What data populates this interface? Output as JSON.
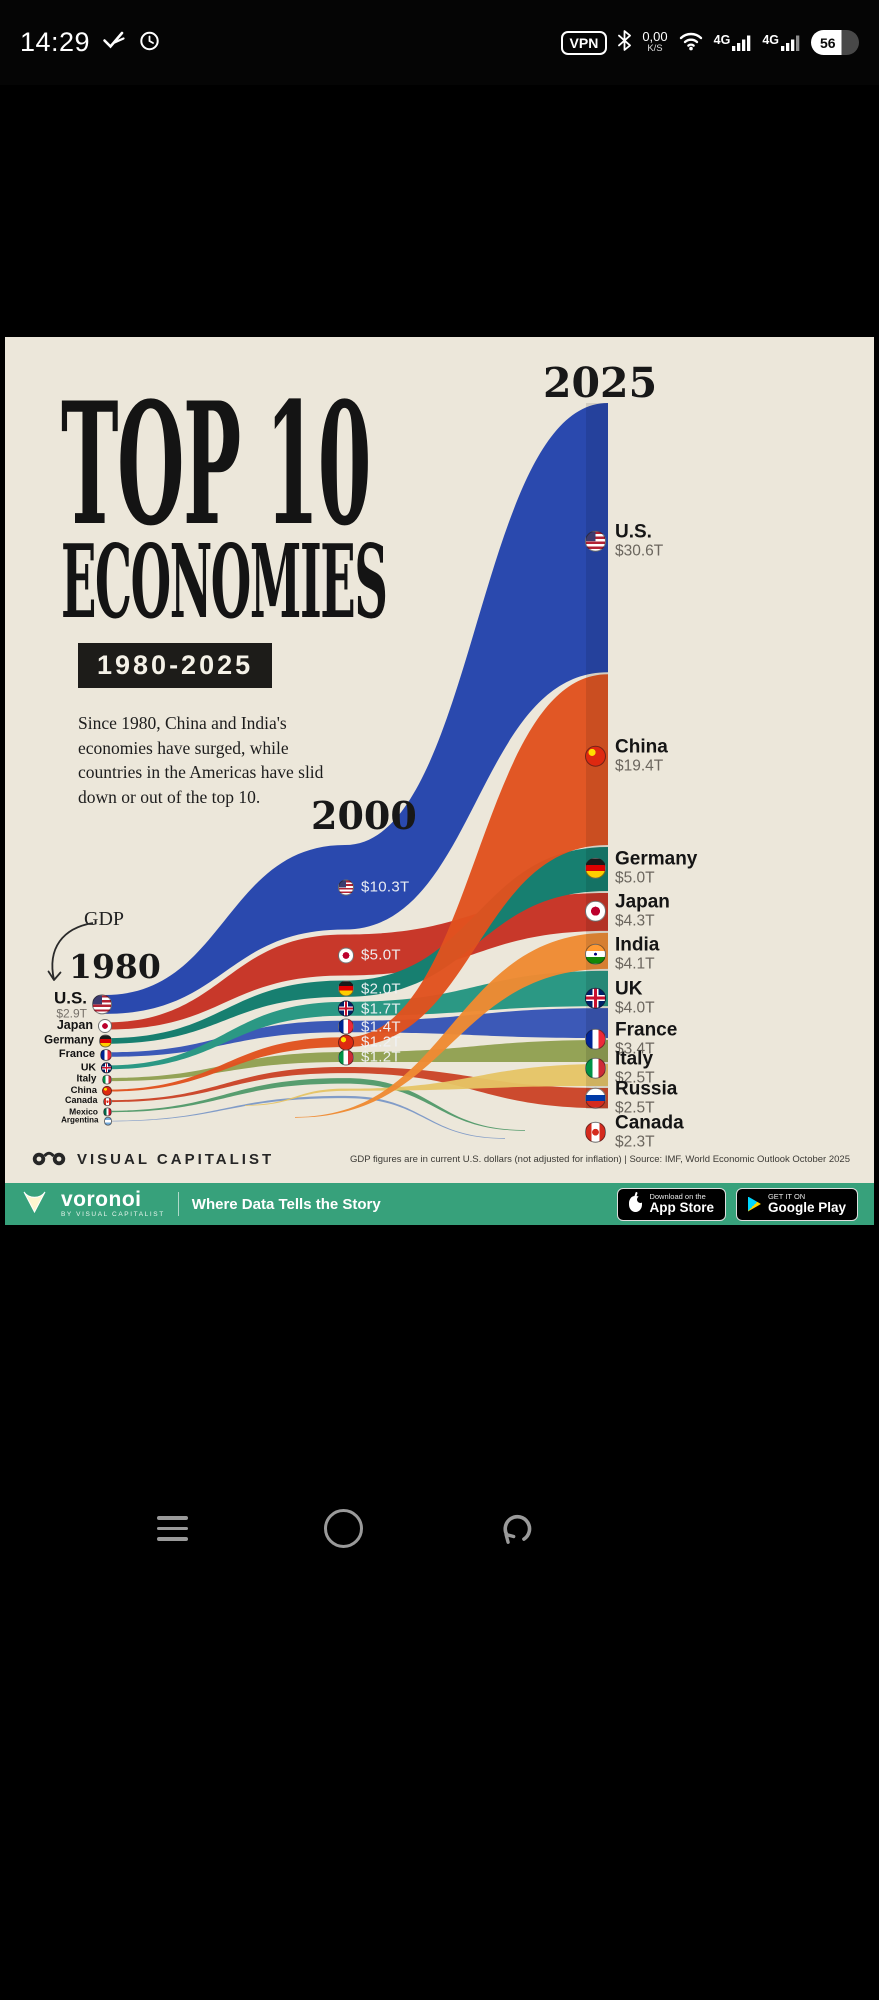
{
  "status_bar": {
    "time": "14:29",
    "vpn_label": "VPN",
    "net_speed_value": "0,00",
    "net_speed_unit": "K/S",
    "network_type_a": "4G",
    "network_type_b": "4G",
    "battery_level": "56"
  },
  "infographic": {
    "year_right": "2025",
    "year_mid": "2000",
    "year_left": "1980",
    "title_line1": "TOP 10",
    "title_line2": "ECONOMIES",
    "period_badge": "1980-2025",
    "intro": "Since 1980, China and India's economies have surged, while countries in the Americas have slid down or out of the top 10.",
    "gdp_label": "GDP",
    "left_axis_labels": [
      {
        "name": "U.S.",
        "value": "$2.9T",
        "flag": "us"
      },
      {
        "name": "Japan",
        "flag": "jp"
      },
      {
        "name": "Germany",
        "flag": "de"
      },
      {
        "name": "France",
        "flag": "fr"
      },
      {
        "name": "UK",
        "flag": "uk"
      },
      {
        "name": "Italy",
        "flag": "it"
      },
      {
        "name": "China",
        "flag": "cn"
      },
      {
        "name": "Canada",
        "flag": "ca"
      },
      {
        "name": "Mexico",
        "flag": "mx"
      },
      {
        "name": "Argentina",
        "flag": "ar"
      }
    ],
    "mid_axis_labels": [
      {
        "value": "$10.3T",
        "flag": "us"
      },
      {
        "value": "$5.0T",
        "flag": "jp"
      },
      {
        "value": "$2.0T",
        "flag": "de"
      },
      {
        "value": "$1.7T",
        "flag": "uk"
      },
      {
        "value": "$1.4T",
        "flag": "fr"
      },
      {
        "value": "$1.2T",
        "flag": "cn"
      },
      {
        "value": "$1.2T",
        "flag": "it"
      }
    ],
    "right_axis_labels": [
      {
        "name": "U.S.",
        "value": "$30.6T",
        "flag": "us"
      },
      {
        "name": "China",
        "value": "$19.4T",
        "flag": "cn"
      },
      {
        "name": "Germany",
        "value": "$5.0T",
        "flag": "de"
      },
      {
        "name": "Japan",
        "value": "$4.3T",
        "flag": "jp"
      },
      {
        "name": "India",
        "value": "$4.1T",
        "flag": "in"
      },
      {
        "name": "UK",
        "value": "$4.0T",
        "flag": "uk"
      },
      {
        "name": "France",
        "value": "$3.4T",
        "flag": "fr"
      },
      {
        "name": "Italy",
        "value": "$2.5T",
        "flag": "it"
      },
      {
        "name": "Russia",
        "value": "$2.5T",
        "flag": "ru"
      },
      {
        "name": "Canada",
        "value": "$2.3T",
        "flag": "ca"
      }
    ],
    "brand": "VISUAL CAPITALIST",
    "source_note": "GDP figures are in current U.S. dollars (not adjusted for inflation) | Source: IMF, World Economic Outlook October 2025"
  },
  "promo_bar": {
    "brand": "voronoi",
    "brand_sub": "BY VISUAL CAPITALIST",
    "tagline": "Where Data Tells the Story",
    "appstore_line1": "Download on the",
    "appstore_line2": "App Store",
    "play_line1": "GET IT ON",
    "play_line2": "Google Play"
  },
  "chart_data": {
    "type": "area",
    "title": "TOP 10 ECONOMIES",
    "subtitle": "1980-2025",
    "x": [
      1980,
      2000,
      2025
    ],
    "unit": "USD trillions, current (not adjusted for inflation)",
    "legend_position": "labels-on-chart",
    "series": [
      {
        "name": "U.S.",
        "flag": "us",
        "color": "#2a49ae",
        "values": [
          2.9,
          10.3,
          30.6
        ]
      },
      {
        "name": "China",
        "flag": "cn",
        "color": "#e0521f",
        "values": [
          0.3,
          1.2,
          19.4
        ]
      },
      {
        "name": "Germany",
        "flag": "de",
        "color": "#177f70",
        "values": [
          0.85,
          2.0,
          5.0
        ]
      },
      {
        "name": "Japan",
        "flag": "jp",
        "color": "#c8382a",
        "values": [
          1.1,
          5.0,
          4.3
        ]
      },
      {
        "name": "India",
        "flag": "in",
        "color": "#ee8a33",
        "values": [
          0.19,
          0.48,
          4.1
        ]
      },
      {
        "name": "UK",
        "flag": "uk",
        "color": "#2b9884",
        "values": [
          0.6,
          1.7,
          4.0
        ]
      },
      {
        "name": "France",
        "flag": "fr",
        "color": "#3c59b7",
        "values": [
          0.7,
          1.4,
          3.4
        ]
      },
      {
        "name": "Italy",
        "flag": "it",
        "color": "#94a356",
        "values": [
          0.48,
          1.2,
          2.5
        ]
      },
      {
        "name": "Russia",
        "flag": "ru",
        "color": "#e6c465",
        "values": [
          null,
          0.26,
          2.5
        ]
      },
      {
        "name": "Canada",
        "flag": "ca",
        "color": "#cc4a2e",
        "values": [
          0.3,
          0.75,
          2.3
        ]
      },
      {
        "name": "Mexico",
        "flag": "mx",
        "color": "#3e8f5c",
        "values": [
          0.23,
          0.68,
          null
        ]
      },
      {
        "name": "Argentina",
        "flag": "ar",
        "color": "#6e8ec4",
        "values": [
          0.08,
          0.28,
          null
        ]
      }
    ],
    "orders": {
      "1980": [
        "U.S.",
        "Japan",
        "Germany",
        "France",
        "UK",
        "Italy",
        "China",
        "Canada",
        "Mexico",
        "Argentina"
      ],
      "2000": [
        "U.S.",
        "Japan",
        "Germany",
        "UK",
        "France",
        "China",
        "Italy",
        "Canada",
        "Mexico",
        "Russia",
        "Argentina"
      ],
      "2025": [
        "U.S.",
        "China",
        "Germany",
        "Japan",
        "India",
        "UK",
        "France",
        "Italy",
        "Russia",
        "Canada"
      ]
    }
  }
}
